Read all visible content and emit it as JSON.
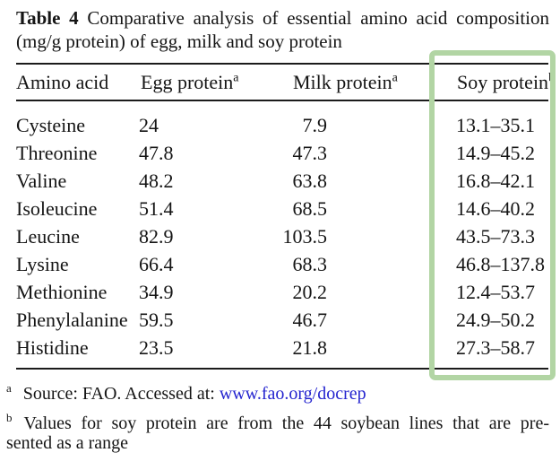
{
  "title": {
    "label": "Table 4",
    "text_line1": "Comparative analysis of essential amino acid composition",
    "text_line2": "(mg/g protein) of egg, milk and soy protein"
  },
  "table": {
    "columns": [
      {
        "label": "Amino acid",
        "sup": ""
      },
      {
        "label": "Egg protein",
        "sup": "a"
      },
      {
        "label": "Milk protein",
        "sup": "a"
      },
      {
        "label": "Soy protein",
        "sup": "b"
      }
    ],
    "rows": [
      {
        "name": "Cysteine",
        "egg": "24",
        "milk": "7.9",
        "soy": "13.1–35.1"
      },
      {
        "name": "Threonine",
        "egg": "47.8",
        "milk": "47.3",
        "soy": "14.9–45.2"
      },
      {
        "name": "Valine",
        "egg": "48.2",
        "milk": "63.8",
        "soy": "16.8–42.1"
      },
      {
        "name": "Isoleucine",
        "egg": "51.4",
        "milk": "68.5",
        "soy": "14.6–40.2"
      },
      {
        "name": "Leucine",
        "egg": "82.9",
        "milk": "103.5",
        "soy": "43.5–73.3"
      },
      {
        "name": "Lysine",
        "egg": "66.4",
        "milk": "68.3",
        "soy": "46.8–137.8"
      },
      {
        "name": "Methionine",
        "egg": "34.9",
        "milk": "20.2",
        "soy": "12.4–53.7"
      },
      {
        "name": "Phenylalanine",
        "egg": "59.5",
        "milk": "46.7",
        "soy": "24.9–50.2"
      },
      {
        "name": "Histidine",
        "egg": "23.5",
        "milk": "21.8",
        "soy": "27.3–58.7"
      }
    ]
  },
  "footnotes": {
    "a": {
      "marker": "a",
      "text": "Source: FAO. Accessed at:",
      "link": "www.fao.org/docrep"
    },
    "b": {
      "marker": "b",
      "line1": "Values for soy protein are from the 44 soybean lines that are pre-",
      "line2": "sented as a range"
    }
  },
  "highlight": {
    "target": "soy-protein-column",
    "color": "#b2d5a4"
  },
  "colors": {
    "text": "#151515",
    "rule": "#1b1b1b",
    "link": "#2424cf"
  }
}
